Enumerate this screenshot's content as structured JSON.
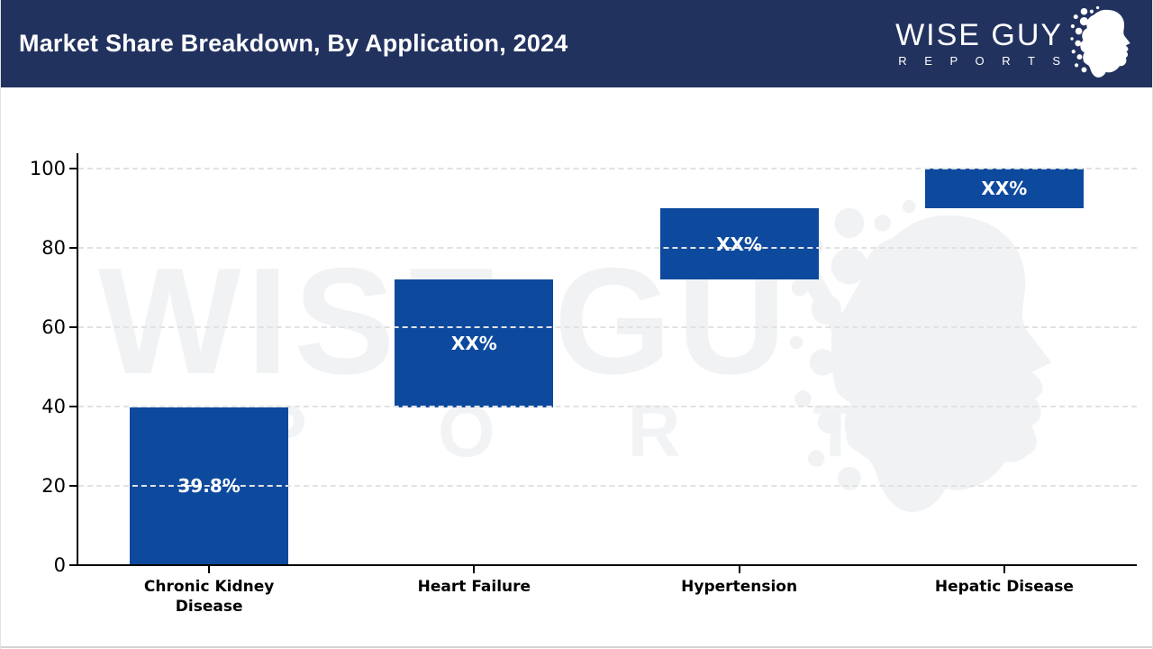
{
  "header": {
    "title": "Market Share Breakdown, By Application, 2024",
    "brand_line1": "WISE GUY",
    "brand_line2": "R E P O R T S",
    "bg_color": "#22325f"
  },
  "watermark": {
    "line1": "WISE GUY",
    "line2": "P O R T S"
  },
  "colors": {
    "header_bg": "#22325f",
    "bar": "#0d4a9e",
    "bar_label": "#ffffff",
    "gridline": "#e2e2e2",
    "axis": "#000000",
    "watermark": "#f1f2f4"
  },
  "chart_data": {
    "type": "bar",
    "subtype": "waterfall",
    "title": "Market Share Breakdown, By Application, 2024",
    "categories": [
      "Chronic Kidney\nDisease",
      "Heart Failure",
      "Hypertension",
      "Hepatic Disease"
    ],
    "series": [
      {
        "name": "Market Share",
        "segments": [
          {
            "category": "Chronic Kidney Disease",
            "start": 0,
            "end": 39.8,
            "label": "39.8%"
          },
          {
            "category": "Heart Failure",
            "start": 39.8,
            "end": 72,
            "label": "XX%"
          },
          {
            "category": "Hypertension",
            "start": 72,
            "end": 90,
            "label": "XX%"
          },
          {
            "category": "Hepatic Disease",
            "start": 90,
            "end": 100,
            "label": "XX%"
          }
        ]
      }
    ],
    "xlabel": "",
    "ylabel": "",
    "ylim": [
      0,
      100
    ],
    "yticks": [
      0,
      20,
      40,
      60,
      80,
      100
    ],
    "grid": "horizontal-dashed",
    "legend": "none",
    "bar_color": "#0d4a9e",
    "value_label_color": "#ffffff"
  }
}
